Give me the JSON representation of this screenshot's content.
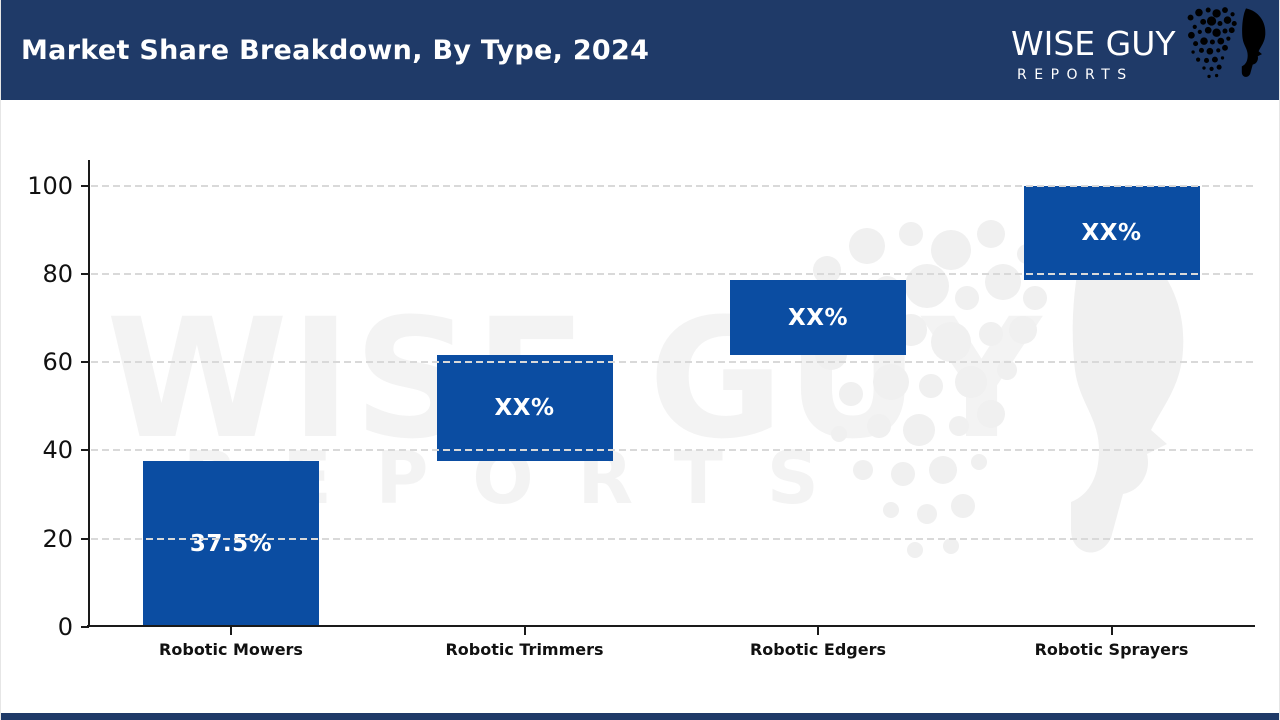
{
  "header": {
    "title": "Market Share Breakdown, By Type, 2024",
    "bg_color": "#1f3a68",
    "logo": {
      "line1": "WISE GUY",
      "line2": "REPORTS"
    }
  },
  "watermark": {
    "line1": "WISE GUY",
    "line2": "REPORTS"
  },
  "chart_data": {
    "type": "bar",
    "subtype": "floating-waterfall",
    "title": "Market Share Breakdown, By Type, 2024",
    "categories": [
      "Robotic Mowers",
      "Robotic Trimmers",
      "Robotic Edgers",
      "Robotic Sprayers"
    ],
    "bars": [
      {
        "category": "Robotic Mowers",
        "start": 0,
        "end": 37.5,
        "label": "37.5%"
      },
      {
        "category": "Robotic Trimmers",
        "start": 37.5,
        "end": 61.5,
        "label": "XX%"
      },
      {
        "category": "Robotic Edgers",
        "start": 61.5,
        "end": 78.5,
        "label": "XX%"
      },
      {
        "category": "Robotic Sprayers",
        "start": 78.5,
        "end": 100,
        "label": "XX%"
      }
    ],
    "ylim": [
      0,
      100
    ],
    "yticks": [
      0,
      20,
      40,
      60,
      80,
      100
    ],
    "xlabel": "",
    "ylabel": "",
    "bar_color": "#0b4da2",
    "grid": {
      "axis": "y",
      "style": "dashed",
      "color": "#d9d9d9",
      "drawn_above_bars": true
    },
    "legend": null
  }
}
